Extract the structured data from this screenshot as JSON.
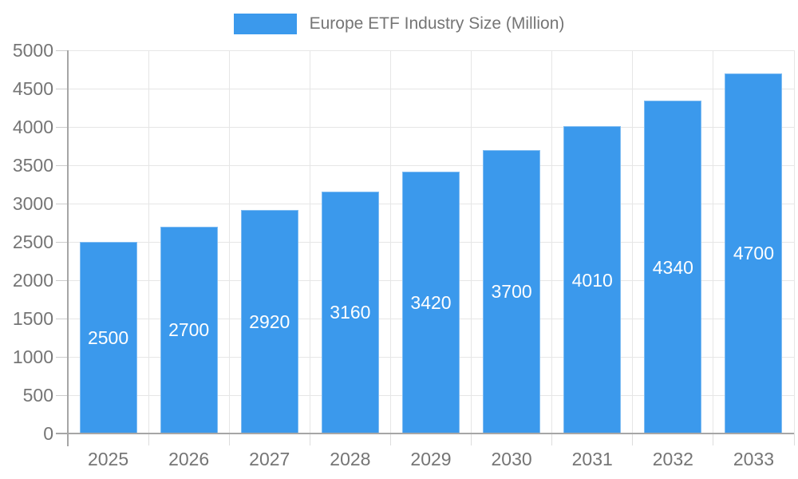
{
  "chart_data": {
    "type": "bar",
    "title": "Europe ETF Industry Size (Million)",
    "categories": [
      "2025",
      "2026",
      "2027",
      "2028",
      "2029",
      "2030",
      "2031",
      "2032",
      "2033"
    ],
    "values": [
      2500,
      2700,
      2920,
      3160,
      3420,
      3700,
      4010,
      4340,
      4700
    ],
    "xlabel": "",
    "ylabel": "",
    "ylim": [
      0,
      5000
    ],
    "ytick_step": 500,
    "ytick_labels": [
      "0",
      "500",
      "1000",
      "1500",
      "2000",
      "2500",
      "3000",
      "3500",
      "4000",
      "4500",
      "5000"
    ],
    "grid": true,
    "legend_position": "top-center",
    "bar_color": "#3b99ec",
    "bar_value_label_color": "#ffffff",
    "axis_text_color": "#757575",
    "gridline_color": "#e6e6e6",
    "axis_line_color": "#a6a6a6",
    "background_color": "#ffffff"
  }
}
